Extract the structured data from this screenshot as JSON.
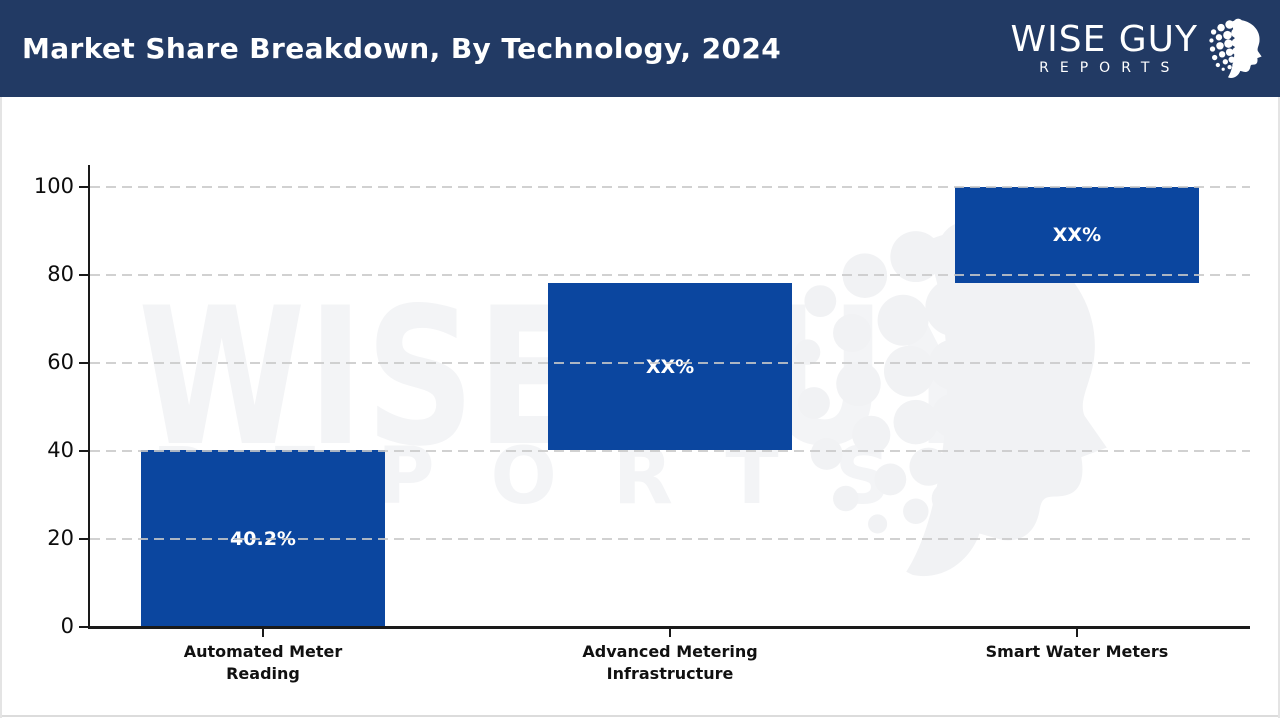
{
  "header": {
    "title": "Market Share Breakdown, By Technology, 2024",
    "background_color": "#223a64",
    "logo": {
      "wordmark": "WISE GUY",
      "subtext": "REPORTS"
    }
  },
  "watermark": {
    "wordmark": "WISE GUY",
    "subtext": "REPORTS"
  },
  "chart_data": {
    "type": "bar",
    "subtype": "floating-segment-bars",
    "title": "Market Share Breakdown, By Technology, 2024",
    "categories": [
      {
        "line1": "Automated Meter",
        "line2": "Reading"
      },
      {
        "line1": "Advanced Metering",
        "line2": "Infrastructure"
      },
      {
        "line1": "Smart Water Meters",
        "line2": ""
      }
    ],
    "bars": [
      {
        "category": "Automated Meter Reading",
        "start": 0,
        "end": 40.2,
        "label": "40.2%"
      },
      {
        "category": "Advanced Metering Infrastructure",
        "start": 40.2,
        "end": 78.2,
        "label": "XX%"
      },
      {
        "category": "Smart Water Meters",
        "start": 78.2,
        "end": 100,
        "label": "XX%"
      }
    ],
    "yticks": [
      0,
      20,
      40,
      60,
      80,
      100
    ],
    "ylim": [
      0,
      105
    ],
    "xlabel": "",
    "ylabel": "",
    "grid": "horizontal-dashed",
    "legend": "none",
    "bar_color": "#0b469f",
    "bar_label_color": "#ffffff",
    "axis_color": "#1a1a1a",
    "grid_color": "#c9c9c9"
  }
}
